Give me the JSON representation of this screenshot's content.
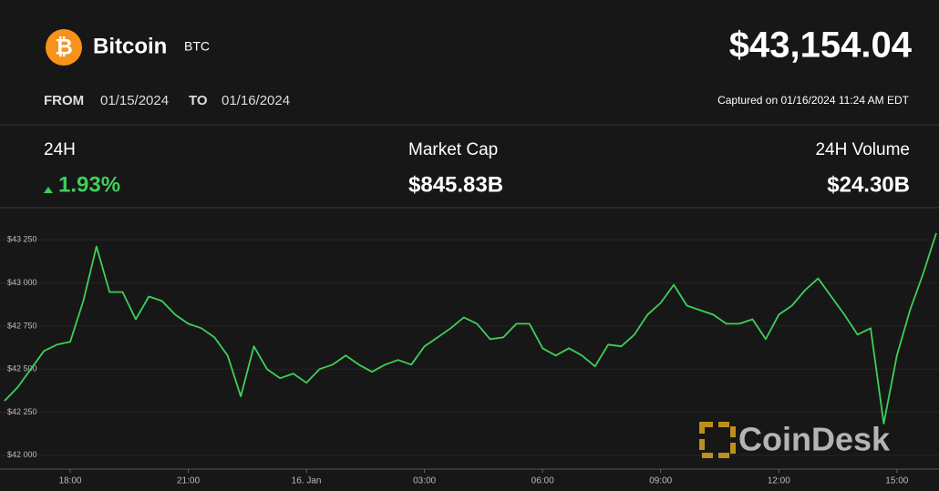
{
  "header": {
    "icon": "₿",
    "title": "Bitcoin",
    "symbol": "BTC",
    "price": "$43,154.04",
    "from_label": "FROM",
    "from_date": "01/15/2024",
    "to_label": "TO",
    "to_date": "01/16/2024",
    "captured": "Captured on 01/16/2024 11:24 AM EDT"
  },
  "stats": [
    {
      "label": "24H",
      "value": "1.93%"
    },
    {
      "label": "Market Cap",
      "value": "$845.83B"
    },
    {
      "label": "24H Volume",
      "value": "$24.30B"
    }
  ],
  "watermark": "CoinDesk",
  "chart_data": {
    "type": "line",
    "categories": [
      null,
      null,
      null,
      null,
      null,
      "18:00",
      null,
      null,
      null,
      null,
      null,
      null,
      null,
      null,
      "21:00",
      null,
      null,
      null,
      null,
      null,
      null,
      null,
      null,
      "16. Jan",
      null,
      null,
      null,
      null,
      null,
      null,
      null,
      null,
      "03:00",
      null,
      null,
      null,
      null,
      null,
      null,
      null,
      null,
      "06:00",
      null,
      null,
      null,
      null,
      null,
      null,
      null,
      null,
      "09:00",
      null,
      null,
      null,
      null,
      null,
      null,
      null,
      null,
      "12:00",
      null,
      null,
      null,
      null,
      null,
      null,
      null,
      null,
      "15:00",
      null,
      null,
      null
    ],
    "series": [
      {
        "name": "BTC",
        "color": "#3ecf5a",
        "values": [
          42316,
          42395,
          42500,
          42605,
          42642,
          42658,
          42895,
          43211,
          42947,
          42947,
          42789,
          42921,
          42895,
          42816,
          42763,
          42737,
          42684,
          42579,
          42342,
          42632,
          42500,
          42447,
          42474,
          42421,
          42500,
          42526,
          42579,
          42526,
          42484,
          42526,
          42553,
          42526,
          42632,
          42684,
          42737,
          42800,
          42763,
          42674,
          42684,
          42763,
          42763,
          42621,
          42579,
          42621,
          42579,
          42516,
          42642,
          42632,
          42700,
          42816,
          42884,
          42989,
          42868,
          42842,
          42816,
          42763,
          42763,
          42789,
          42674,
          42816,
          42868,
          42958,
          43026,
          42921,
          42816,
          42700,
          42737,
          42184,
          42579,
          42842,
          43053,
          43289
        ]
      }
    ],
    "ylim": [
      41920,
      43415
    ],
    "yticks": [
      {
        "value": 42000,
        "label": "$42 000"
      },
      {
        "value": 42250,
        "label": "$42 250"
      },
      {
        "value": 42500,
        "label": "$42 500"
      },
      {
        "value": 42750,
        "label": "$42 750"
      },
      {
        "value": 43000,
        "label": "$43 000"
      },
      {
        "value": 43250,
        "label": "$43 250"
      }
    ],
    "grid": true
  }
}
